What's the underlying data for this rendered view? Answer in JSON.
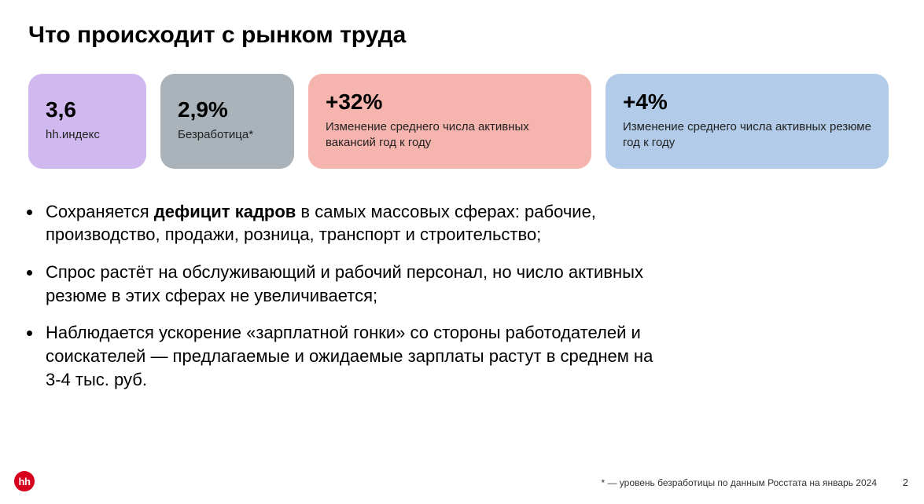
{
  "title": "Что происходит с рынком труда",
  "cards": [
    {
      "value": "3,6",
      "label": "hh.индекс",
      "bg": "#cfb9ef"
    },
    {
      "value": "2,9%",
      "label": "Безработица*",
      "bg": "#a9b3b9"
    },
    {
      "value": "+32%",
      "label": "Изменение среднего числа активных вакансий год к году",
      "bg": "#f5b5ae"
    },
    {
      "value": "+4%",
      "label": "Изменение среднего числа активных резюме год к году",
      "bg": "#b1cbe9"
    }
  ],
  "bullets": [
    {
      "pre": "Сохраняется ",
      "bold": "дефицит кадров",
      "post": " в самых массовых сферах: рабочие, производство, продажи, розница, транспорт и строительство;"
    },
    {
      "pre": "Спрос растёт на обслуживающий и рабочий персонал, но число активных резюме в этих сферах не увеличивается;",
      "bold": "",
      "post": ""
    },
    {
      "pre": "Наблюдается ускорение «зарплатной гонки» со стороны работодателей и соискателей — предлагаемые и ожидаемые зарплаты растут в среднем на 3-4 тыс. руб.",
      "bold": "",
      "post": ""
    }
  ],
  "footnote": "* — уровень безработицы по данным Росстата на январь 2024",
  "page_number": "2",
  "logo": {
    "text": "hh",
    "bg": "#d6001c"
  },
  "styling": {
    "title_fontsize": 30,
    "card_value_fontsize": 28,
    "card_label_fontsize": 15,
    "bullet_fontsize": 22,
    "card_radius": 18,
    "background": "#ffffff",
    "text_color": "#000000"
  }
}
